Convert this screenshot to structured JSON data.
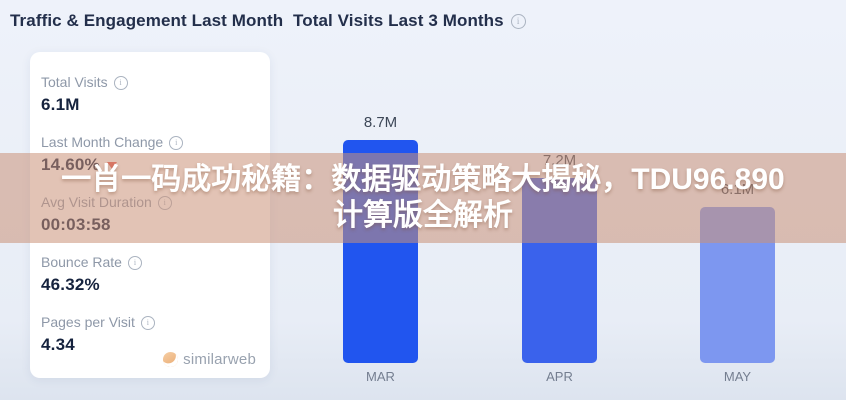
{
  "page": {
    "background": "#e8edf6"
  },
  "left_panel": {
    "title": "Traffic & Engagement Last Month",
    "metrics": [
      {
        "label": "Total Visits",
        "value": "6.1M"
      },
      {
        "label": "Last Month Change",
        "value": "14.60%",
        "trend": "down"
      },
      {
        "label": "Avg Visit Duration",
        "value": "00:03:58"
      },
      {
        "label": "Bounce Rate",
        "value": "46.32%"
      },
      {
        "label": "Pages per Visit",
        "value": "4.34"
      }
    ],
    "logo_text": "similarweb"
  },
  "chart_panel": {
    "title": "Total Visits Last 3 Months"
  },
  "chart_data": {
    "type": "bar",
    "title": "Total Visits Last 3 Months",
    "categories": [
      "MAR",
      "APR",
      "MAY"
    ],
    "values": [
      8.7,
      7.2,
      6.1
    ],
    "value_labels": [
      "8.7M",
      "7.2M",
      "6.1M"
    ],
    "unit": "M visits",
    "ylim": [
      0,
      8.7
    ],
    "grid": false,
    "legend": "none",
    "bar_colors": [
      "#2155ef",
      "#3a62ec",
      "#7d97f0"
    ]
  },
  "watermark": {
    "line1": "一肖一码成功秘籍：数据驱动策略大揭秘，TDU96.890",
    "line2": "计算版全解析",
    "band_color": "rgba(203,146,120,0.55)",
    "text_color": "#ffffff"
  },
  "icons": {
    "info": "i",
    "trend_down": "▼"
  },
  "colors": {
    "bar_mar": "#2155ef",
    "bar_apr": "#3a62ec",
    "bar_may": "#7d97f0",
    "trend_down_red": "#e8554d",
    "value_text": "#16233e",
    "label_text": "#8e98a8"
  }
}
